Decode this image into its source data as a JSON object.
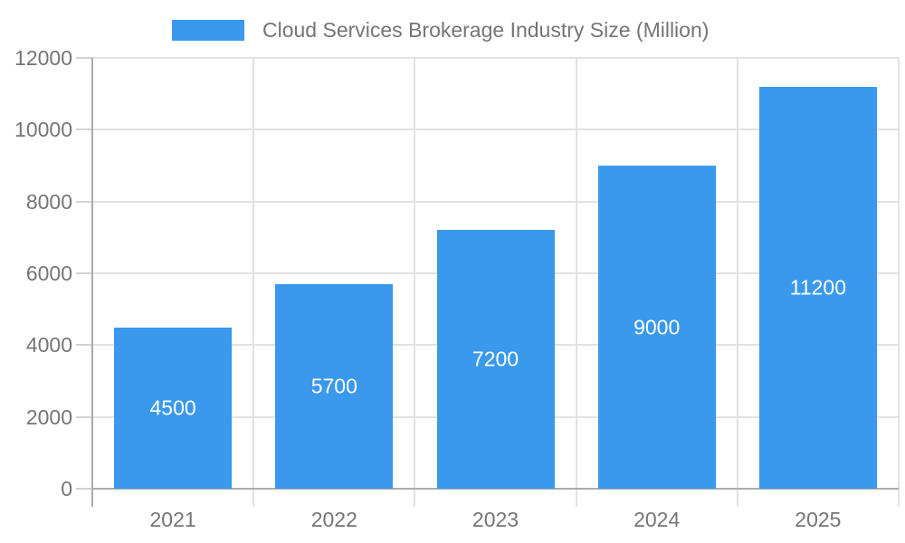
{
  "chart_data": {
    "type": "bar",
    "title": "",
    "legend_position": "top",
    "categories": [
      "2021",
      "2022",
      "2023",
      "2024",
      "2025"
    ],
    "series": [
      {
        "name": "Cloud Services Brokerage Industry Size (Million)",
        "values": [
          4500,
          5700,
          7200,
          9000,
          11200
        ]
      }
    ],
    "bar_value_labels": [
      "4500",
      "5700",
      "7200",
      "9000",
      "11200"
    ],
    "xlabel": "",
    "ylabel": "",
    "ylim": [
      0,
      12000
    ],
    "yticks": [
      0,
      2000,
      4000,
      6000,
      8000,
      10000,
      12000
    ],
    "grid": "both",
    "colors": {
      "bar": "#3a99ec",
      "bar_label_text": "#ffffff",
      "axis_text": "#757575",
      "gridline": "#e2e2e2",
      "axis_line": "#ababab",
      "tick": "#d2d2d2",
      "background": "#ffffff"
    }
  }
}
